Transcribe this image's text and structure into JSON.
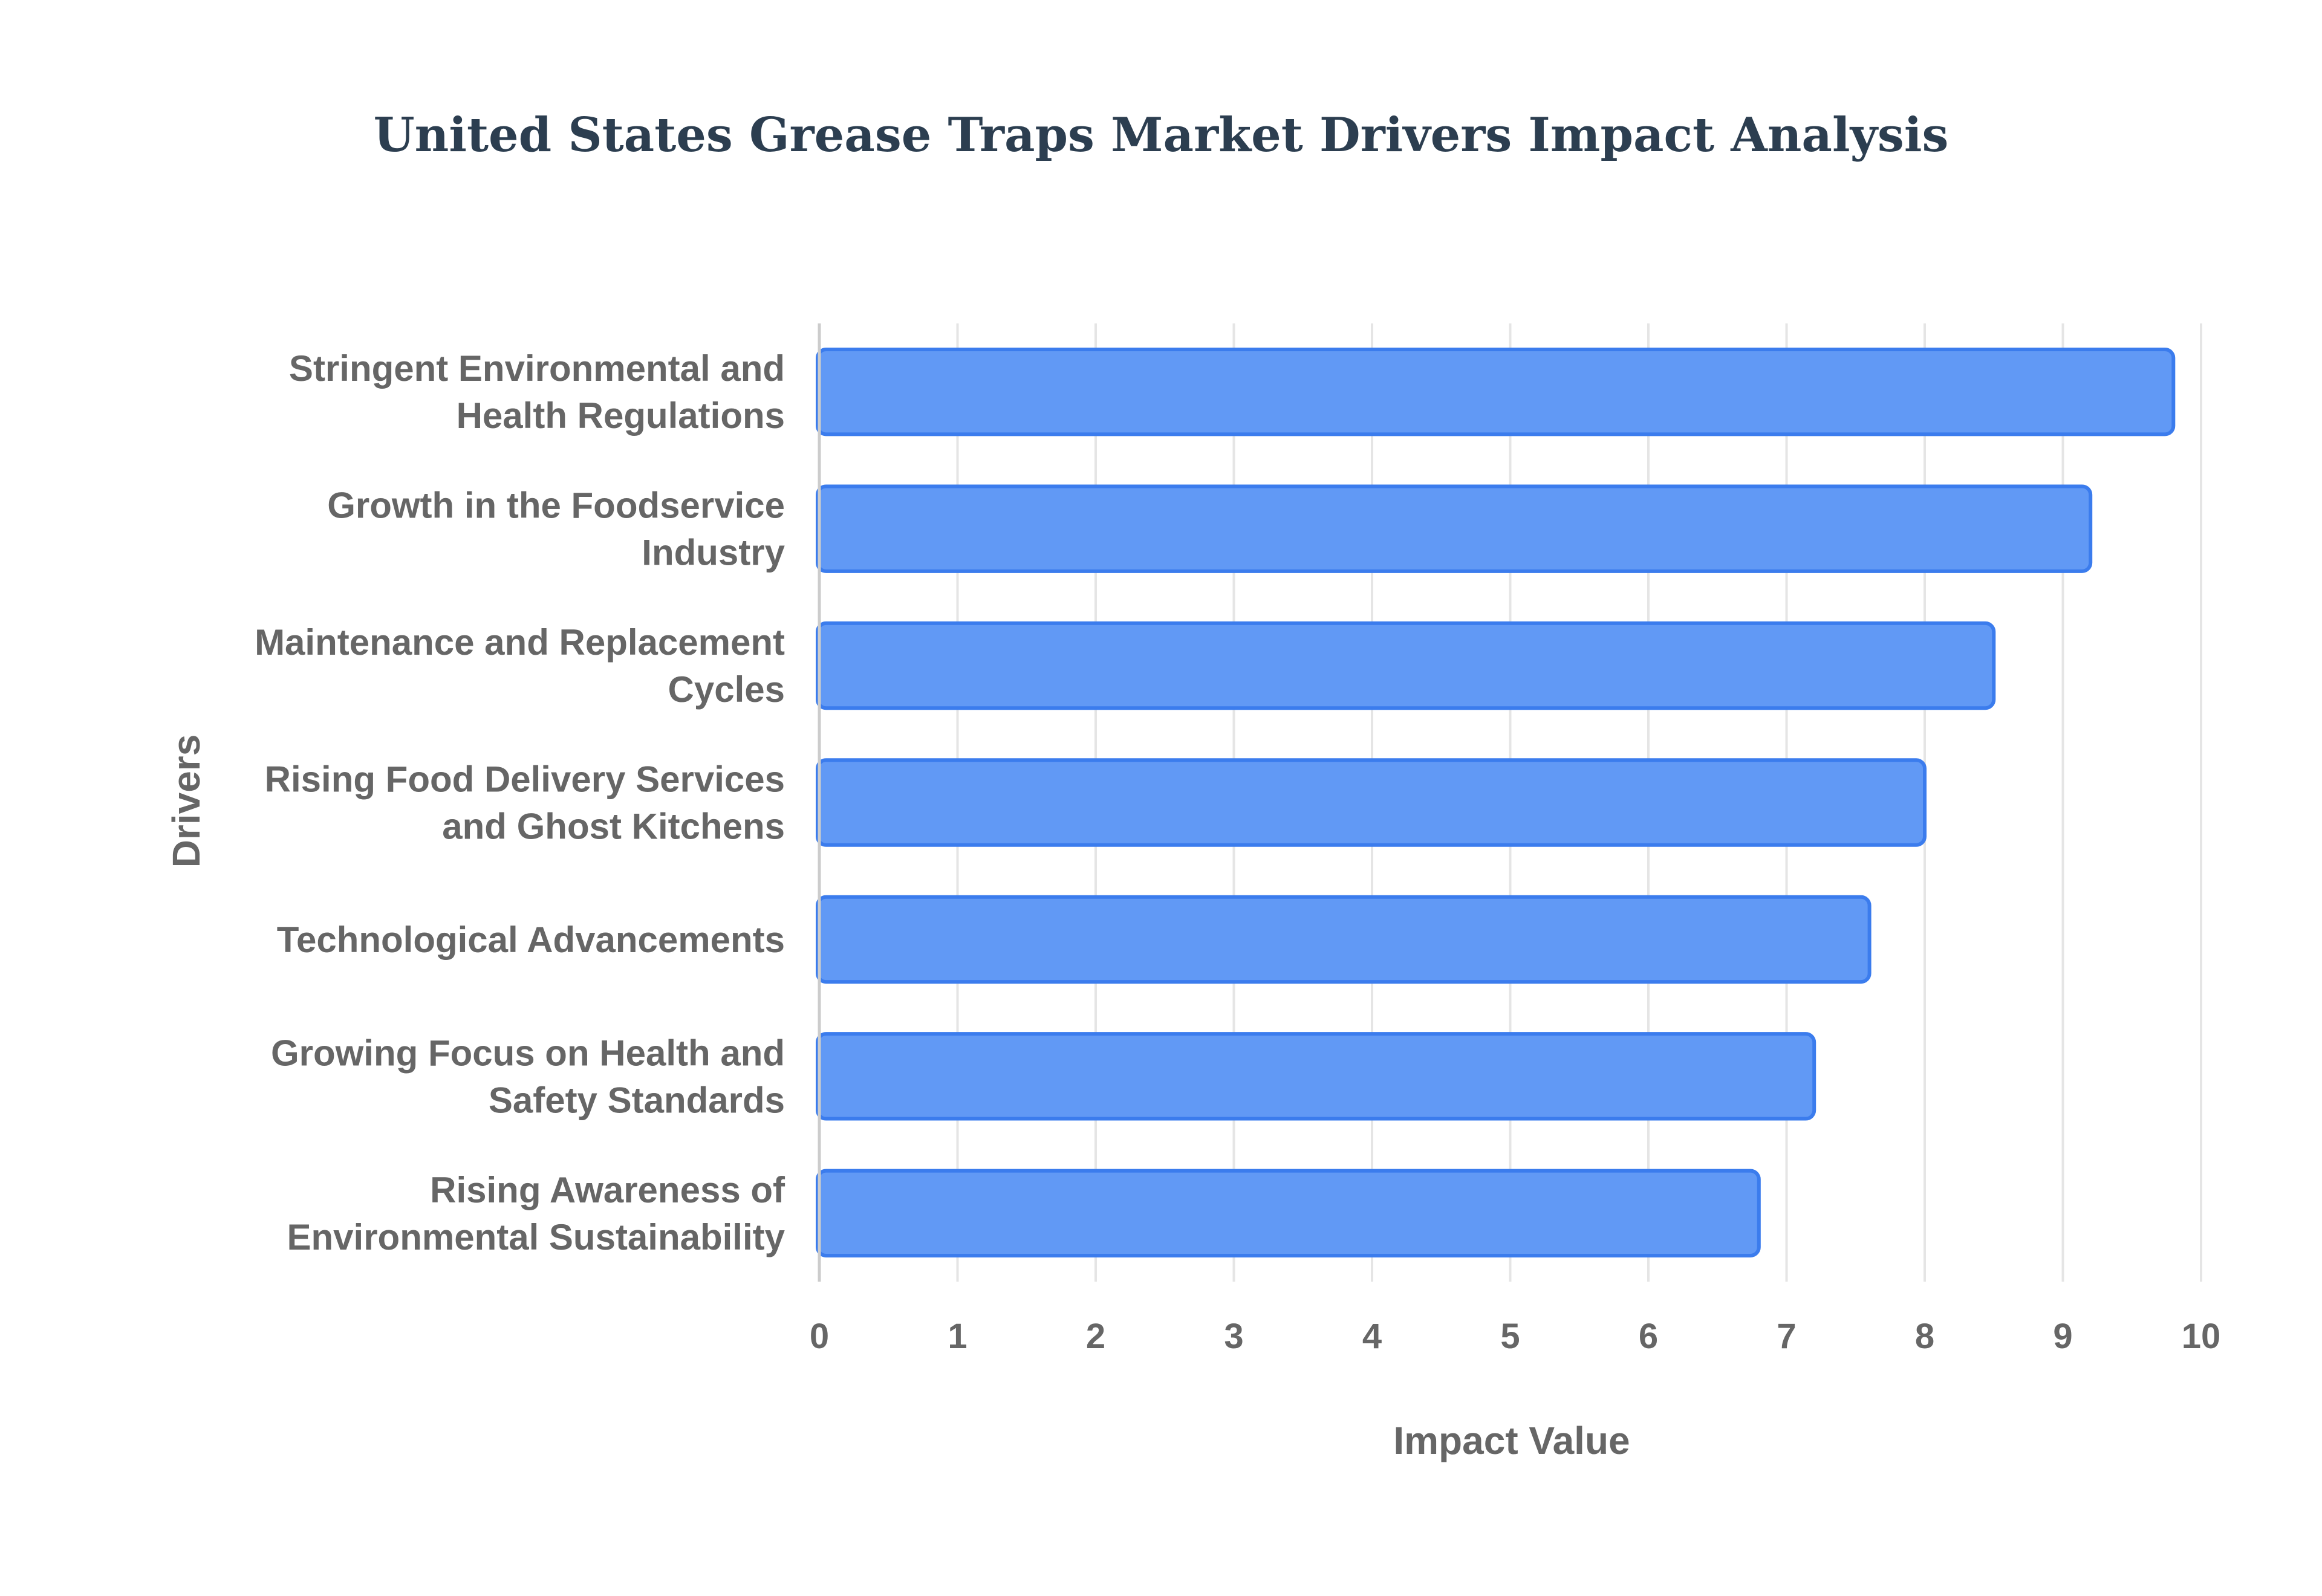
{
  "chart_data": {
    "type": "bar",
    "orientation": "horizontal",
    "title": "United States Grease Traps Market Drivers Impact Analysis",
    "xlabel": "Impact Value",
    "ylabel": "Drivers",
    "xlim": [
      0,
      10
    ],
    "xticks": [
      "0",
      "1",
      "2",
      "3",
      "4",
      "5",
      "6",
      "7",
      "8",
      "9",
      "10"
    ],
    "categories": [
      [
        "Stringent Environmental and",
        "Health Regulations"
      ],
      [
        "Growth in the Foodservice",
        "Industry"
      ],
      [
        "Maintenance and Replacement",
        "Cycles"
      ],
      [
        "Rising Food Delivery Services",
        "and Ghost Kitchens"
      ],
      [
        "Technological Advancements"
      ],
      [
        "Growing Focus on Health and",
        "Safety Standards"
      ],
      [
        "Rising Awareness of",
        "Environmental Sustainability"
      ]
    ],
    "values": [
      9.8,
      9.2,
      8.5,
      8.0,
      7.6,
      7.2,
      6.8
    ],
    "grid": true,
    "legend": "none",
    "colors": {
      "bar_fill": "#6199f5",
      "bar_stroke": "#3b7ced",
      "title": "#2c3e50",
      "text": "#666666",
      "grid": "#e5e5e5"
    }
  }
}
